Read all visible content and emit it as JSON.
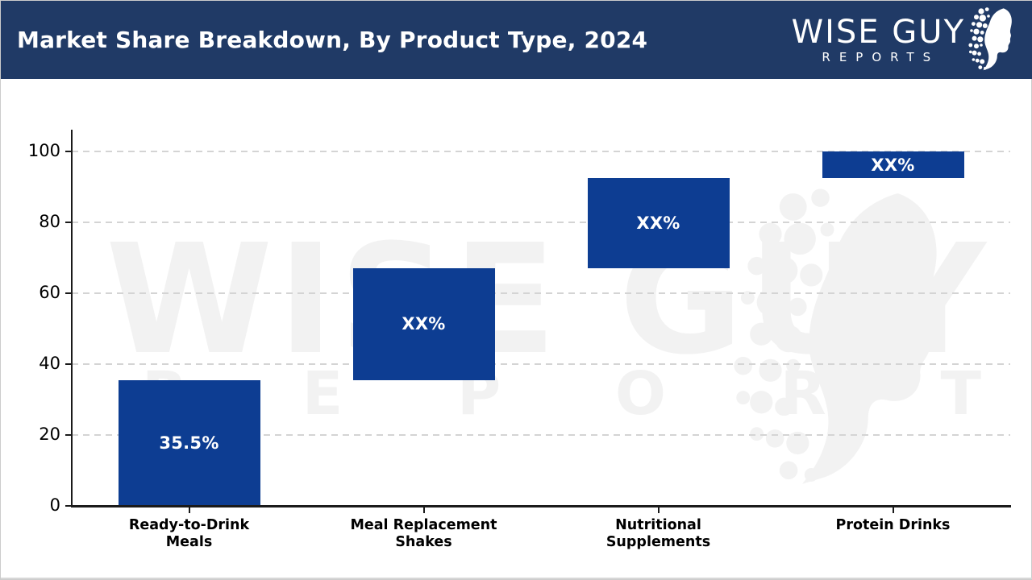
{
  "header": {
    "title": "Market Share Breakdown, By Product Type, 2024",
    "logo": {
      "line1": "WISE GUY",
      "line2": "REPORTS"
    }
  },
  "watermark": {
    "line1": "WISE GUY",
    "line2": "R E P O R T S"
  },
  "chart_data": {
    "type": "bar",
    "variant": "waterfall-segment",
    "title": "Market Share Breakdown, By Product Type, 2024",
    "categories": [
      "Ready-to-Drink\nMeals",
      "Meal Replacement\nShakes",
      "Nutritional\nSupplements",
      "Protein Drinks"
    ],
    "bars": [
      {
        "category": "Ready-to-Drink Meals",
        "start": 0,
        "end": 35.5,
        "label": "35.5%"
      },
      {
        "category": "Meal Replacement Shakes",
        "start": 35.5,
        "end": 67,
        "label": "XX%"
      },
      {
        "category": "Nutritional Supplements",
        "start": 67,
        "end": 92.5,
        "label": "XX%"
      },
      {
        "category": "Protein Drinks",
        "start": 92.5,
        "end": 100,
        "label": "XX%"
      }
    ],
    "yticks": [
      0,
      20,
      40,
      60,
      80,
      100
    ],
    "ylim": [
      0,
      106
    ],
    "xlabel": "",
    "ylabel": "",
    "legend": null,
    "grid": "horizontal-dashed",
    "colors": {
      "bar": "#0d3d92",
      "header_band": "#203a66",
      "grid": "#d4d4d4",
      "axis": "#1a1a1a",
      "bar_label_text": "#ffffff",
      "watermark": "#f2f2f2"
    }
  }
}
